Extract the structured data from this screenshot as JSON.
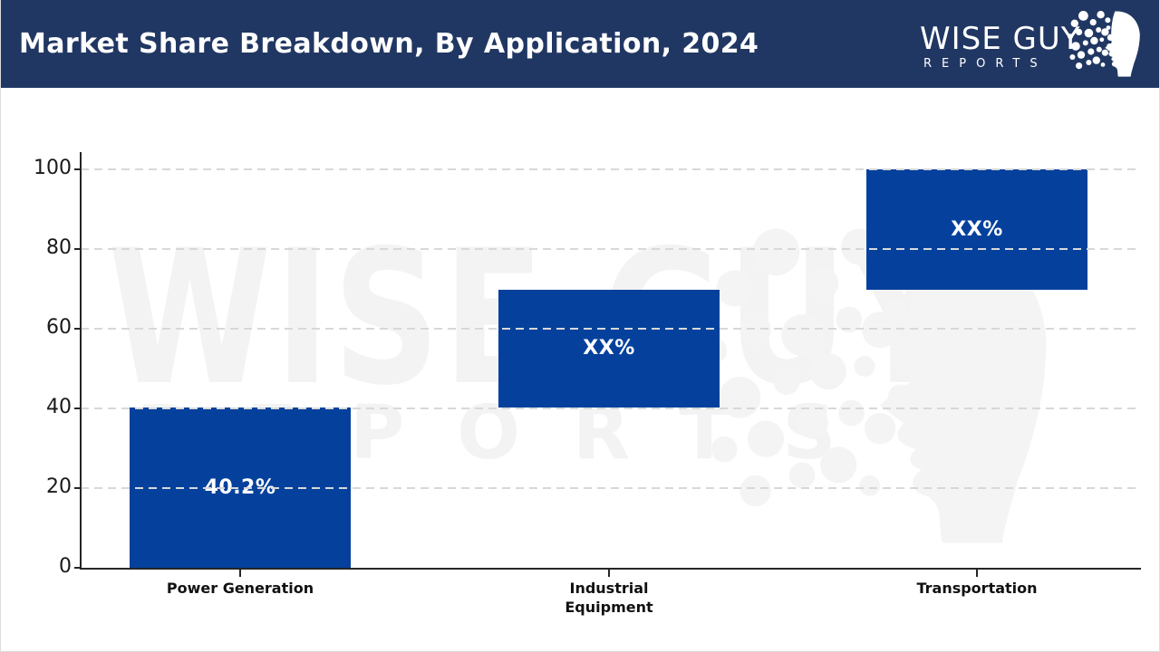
{
  "header": {
    "title": "Market Share Breakdown, By Application, 2024",
    "logo": {
      "wordmark": "WISE GUY",
      "subtext": "REPORTS"
    }
  },
  "watermark": {
    "wordmark": "WISE GUY",
    "subtext": "REPORTS"
  },
  "chart_data": {
    "type": "bar",
    "subtype": "floating-segment-waterfall",
    "title": "Market Share Breakdown, By Application, 2024",
    "categories": [
      "Power Generation",
      "Industrial\nEquipment",
      "Transportation"
    ],
    "segments": [
      {
        "category": "Power Generation",
        "start": 0,
        "end": 40.2,
        "label": "40.2%"
      },
      {
        "category": "Industrial Equipment",
        "start": 40.2,
        "end": 69.8,
        "label": "XX%"
      },
      {
        "category": "Transportation",
        "start": 69.8,
        "end": 100,
        "label": "XX%"
      }
    ],
    "yticks": [
      0,
      20,
      40,
      60,
      80,
      100
    ],
    "ylim": [
      0,
      100
    ],
    "xlabel": "",
    "ylabel": "",
    "legend": "none",
    "grid": {
      "horizontal": true,
      "style": "dashed"
    },
    "colors": {
      "bar": "#05419c",
      "bar_label": "#ffffff",
      "header_bg": "#213763",
      "grid": "#d8d8d8",
      "axis": "#262626",
      "tick_text": "#1a1a1a",
      "watermark": "#f3f3f3"
    }
  }
}
